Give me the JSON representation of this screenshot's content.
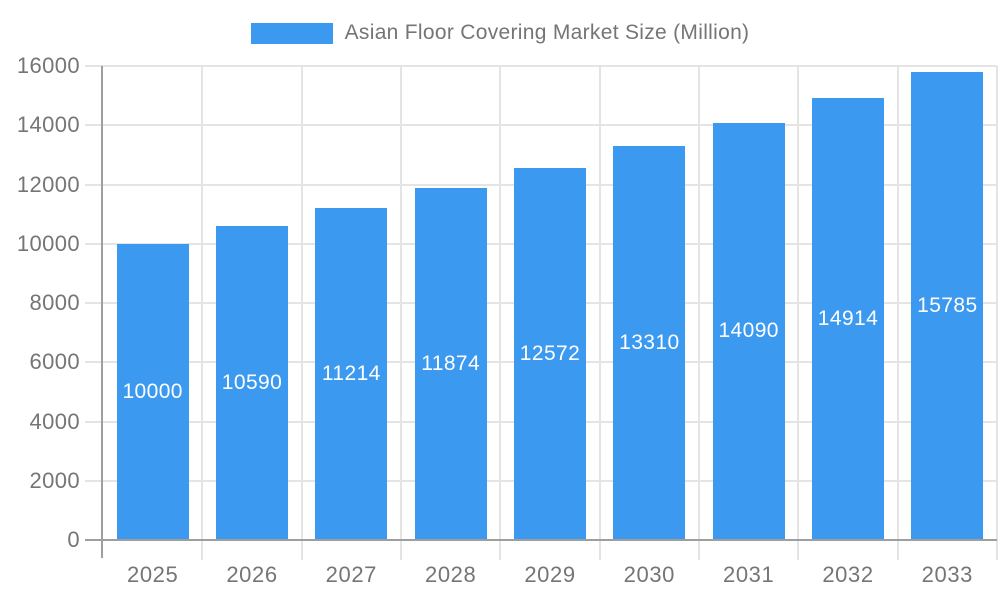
{
  "chart_data": {
    "type": "bar",
    "title": "Asian Floor Covering Market Size (Million)",
    "categories": [
      "2025",
      "2026",
      "2027",
      "2028",
      "2029",
      "2030",
      "2031",
      "2032",
      "2033"
    ],
    "values": [
      10000,
      10590,
      11214,
      11874,
      12572,
      13310,
      14090,
      14914,
      15785
    ],
    "xlabel": "",
    "ylabel": "",
    "ylim": [
      0,
      16000
    ],
    "ytick_step": 2000,
    "ytick_labels": [
      "0",
      "2000",
      "4000",
      "6000",
      "8000",
      "10000",
      "12000",
      "14000",
      "16000"
    ],
    "grid": true,
    "legend_position": "top-center",
    "bar_label_position": "inside-center",
    "colors": {
      "bar": "#3b99f0",
      "bar_value_label": "#ffffff",
      "grid": "#e4e4e4",
      "axis_line": "#9e9e9e",
      "tick_text": "#757575",
      "legend_text": "#757575",
      "background": "#ffffff"
    }
  }
}
